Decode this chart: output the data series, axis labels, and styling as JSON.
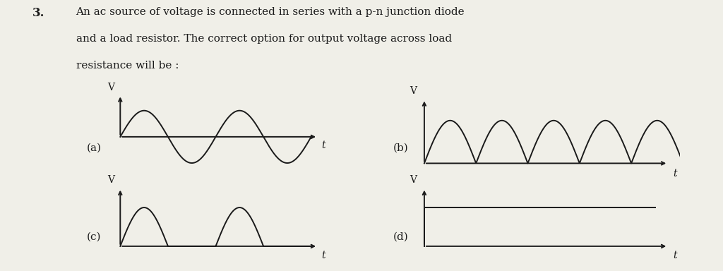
{
  "bg_color": "#f0efe8",
  "line_color": "#1a1a1a",
  "text_color": "#1a1a1a",
  "question_number": "3.",
  "question_line1": "An ac source of voltage is connected in series with a p-n junction diode",
  "question_line2": "and a load resistor. The correct option for output voltage across load",
  "question_line3": "resistance will be :",
  "labels": [
    "(a)",
    "(b)",
    "(c)",
    "(d)"
  ],
  "axis_label_V": "V",
  "axis_label_t": "t",
  "lw": 1.4,
  "fontsize_q": 12,
  "fontsize_label": 11,
  "fontsize_axis": 10
}
